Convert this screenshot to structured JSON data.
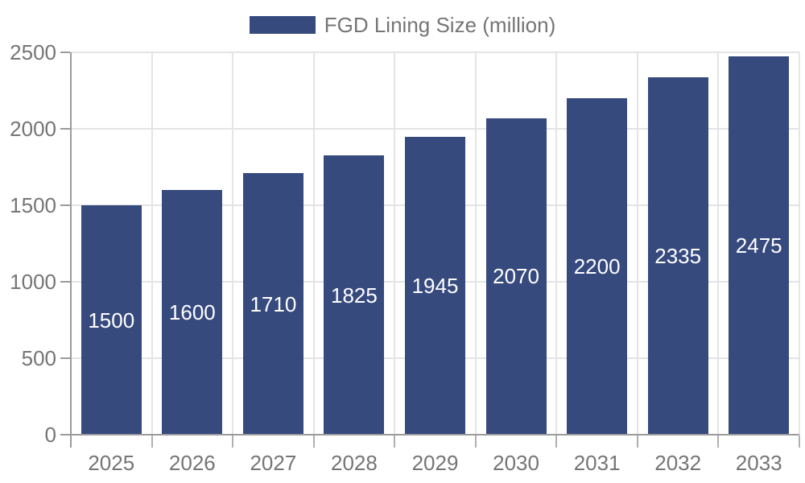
{
  "chart_data": {
    "type": "bar",
    "title": "FGD Lining Size (million)",
    "legend": {
      "label": "FGD Lining Size (million)",
      "position": "top"
    },
    "categories": [
      "2025",
      "2026",
      "2027",
      "2028",
      "2029",
      "2030",
      "2031",
      "2032",
      "2033"
    ],
    "series": [
      {
        "name": "FGD Lining Size (million)",
        "values": [
          1500,
          1600,
          1710,
          1825,
          1945,
          2070,
          2200,
          2335,
          2475
        ]
      }
    ],
    "value_labels_shown": true,
    "ylim": [
      0,
      2500
    ],
    "yticks": [
      0,
      500,
      1000,
      1500,
      2000,
      2500
    ],
    "grid": true,
    "colors": {
      "bar": "#374A7E",
      "value_label_text": "#ffffff",
      "axis_text": "#757575",
      "grid_line": "#e4e4e4",
      "axis_line": "#9b9b9b",
      "tick_mark": "#b0b0b0"
    }
  }
}
